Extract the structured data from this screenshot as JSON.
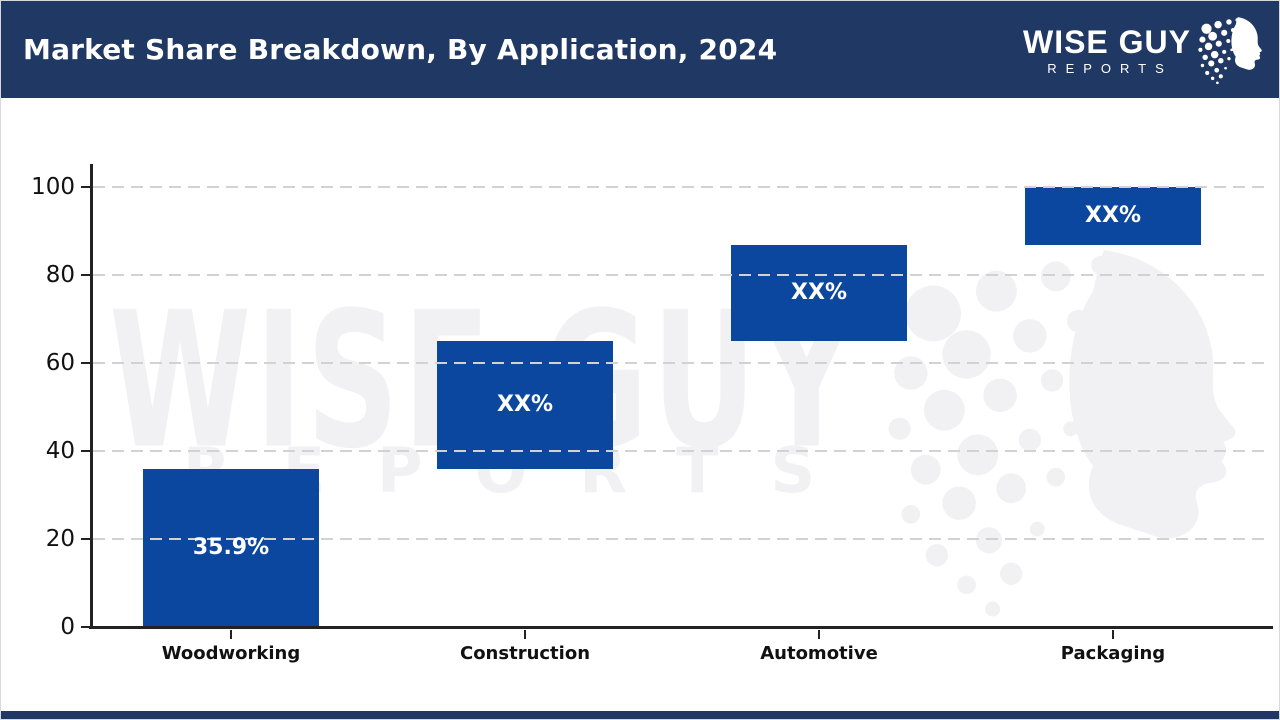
{
  "header": {
    "title": "Market Share Breakdown, By Application, 2024",
    "logo": {
      "wordmark": "WISE GUY",
      "subtext": "REPORTS"
    }
  },
  "watermark": {
    "wordmark": "WISE GUY",
    "subtext": "REPORTS"
  },
  "chart_data": {
    "type": "bar",
    "subtype": "floating-waterfall",
    "title": "Market Share Breakdown, By Application, 2024",
    "categories": [
      "Woodworking",
      "Construction",
      "Automotive",
      "Packaging"
    ],
    "segments": [
      {
        "category": "Woodworking",
        "start": 0,
        "end": 35.9,
        "label": "35.9%"
      },
      {
        "category": "Construction",
        "start": 35.9,
        "end": 65,
        "label": "XX%"
      },
      {
        "category": "Automotive",
        "start": 65,
        "end": 86.8,
        "label": "XX%"
      },
      {
        "category": "Packaging",
        "start": 86.8,
        "end": 100,
        "label": "XX%"
      }
    ],
    "y_ticks": [
      0,
      20,
      40,
      60,
      80,
      100
    ],
    "ylim": [
      0,
      100
    ],
    "xlabel": "",
    "ylabel": "",
    "legend": "none",
    "grid": "horizontal-dashed"
  },
  "colors": {
    "header_bg": "#203864",
    "footer_bg": "#203864",
    "bar_fill": "#0c479f",
    "bar_label": "#ffffff",
    "grid_line": "#d2d2d2",
    "axis": "#222222",
    "watermark": "#f1f1f4"
  }
}
